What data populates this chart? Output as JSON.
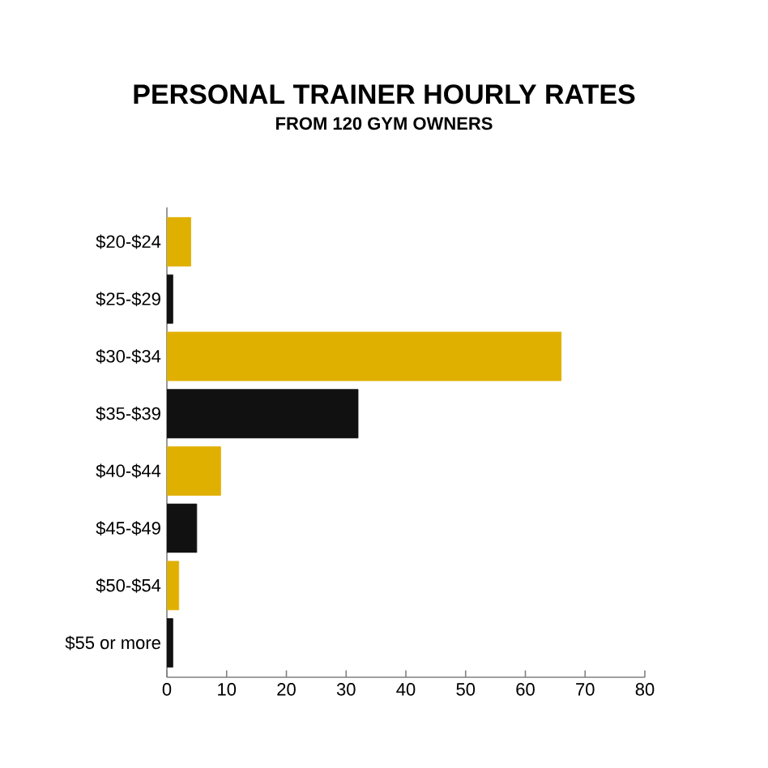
{
  "chart_data": {
    "type": "bar",
    "orientation": "horizontal",
    "title": "PERSONAL TRAINER HOURLY RATES",
    "subtitle": "FROM 120 GYM OWNERS",
    "categories": [
      "$20-$24",
      "$25-$29",
      "$30-$34",
      "$35-$39",
      "$40-$44",
      "$45-$49",
      "$50-$54",
      "$55 or more"
    ],
    "values": [
      4,
      1,
      66,
      32,
      9,
      5,
      2,
      1
    ],
    "colors": [
      "#e0b000",
      "#111111",
      "#e0b000",
      "#111111",
      "#e0b000",
      "#111111",
      "#e0b000",
      "#111111"
    ],
    "xlim": [
      0,
      80
    ],
    "xticks": [
      0,
      10,
      20,
      30,
      40,
      50,
      60,
      70,
      80
    ],
    "grid": false
  }
}
